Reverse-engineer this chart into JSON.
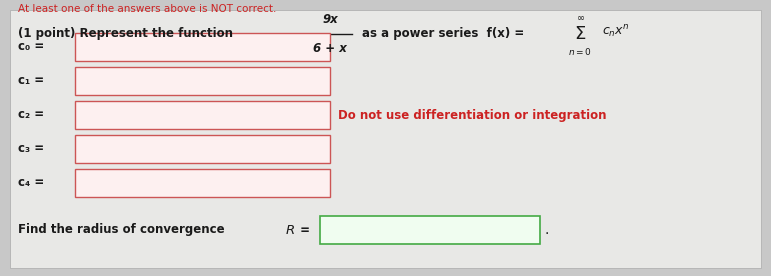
{
  "background_color": "#c8c8c8",
  "panel_color": "#e8e8e6",
  "top_text": "At least one of the answers above is NOT correct.",
  "top_text_color": "#cc2222",
  "title_line1": "(1 point) Represent the function",
  "fraction_num": "9x",
  "fraction_den": "6 + x",
  "as_power_series": "as a power series",
  "fx_eq": "f(x) =",
  "coeff_labels": [
    "c₀ =",
    "c₁ =",
    "c₂ =",
    "c₃ =",
    "c₄ ="
  ],
  "warning_text": "Do not use differentiation or integration",
  "warning_color": "#cc2222",
  "find_text": "Find the radius of convergence ",
  "R_text": "R =",
  "input_fill_coeff": "#fdf0f0",
  "input_border_coeff": "#cc5555",
  "input_fill_R": "#f0fdf0",
  "input_border_R": "#44aa44",
  "text_color": "#1a1a1a",
  "font_size_main": 8.5,
  "font_size_label": 8.5
}
